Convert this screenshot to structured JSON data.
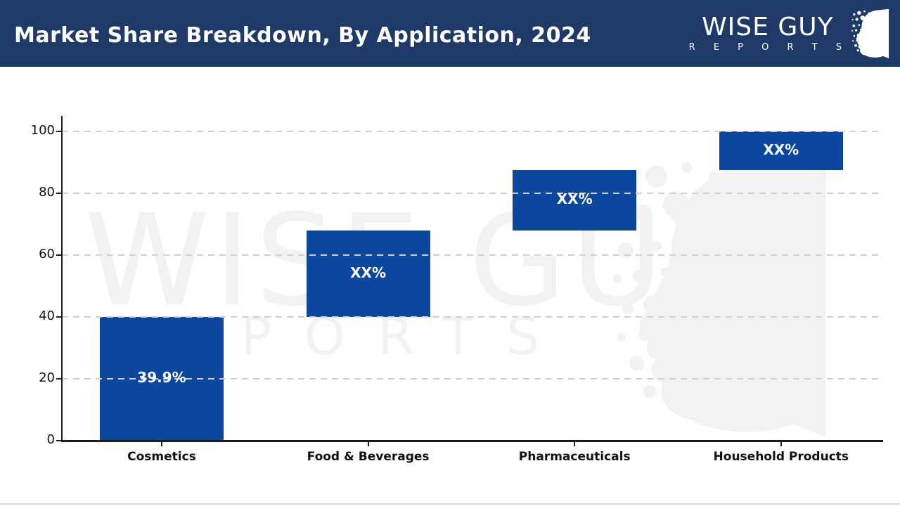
{
  "header": {
    "title": "Market Share Breakdown, By Application, 2024",
    "bg_color": "#1f3a68",
    "logo": {
      "line1": "WISE GUY",
      "line2": "R E P O R T S"
    }
  },
  "watermark": {
    "line1": "WISE GUY",
    "line2": "REPORTS"
  },
  "chart_data": {
    "type": "bar",
    "subtype": "waterfall-stacked-percentage",
    "title": "Market Share Breakdown, By Application, 2024",
    "categories": [
      "Cosmetics",
      "Food & Beverages",
      "Pharmaceuticals",
      "Household Products"
    ],
    "series": [
      {
        "name": "Market share by application (%)",
        "segments": [
          {
            "category": "Cosmetics",
            "start": 0,
            "end": 39.9,
            "label": "39.9%"
          },
          {
            "category": "Food & Beverages",
            "start": 39.9,
            "end": 68.0,
            "label": "XX%"
          },
          {
            "category": "Pharmaceuticals",
            "start": 68.0,
            "end": 87.4,
            "label": "XX%"
          },
          {
            "category": "Household Products",
            "start": 87.4,
            "end": 100,
            "label": "XX%"
          }
        ]
      }
    ],
    "yticks": [
      0,
      20,
      40,
      60,
      80,
      100
    ],
    "ylim": [
      0,
      105
    ],
    "xlabel": "",
    "ylabel": "",
    "grid": "dashed-horizontal",
    "legend": "none",
    "bar_color": "#0c479f",
    "bar_label_color": "#ffffff",
    "axis_color": "#1c1c1c",
    "grid_color": "#d2d2d2"
  }
}
